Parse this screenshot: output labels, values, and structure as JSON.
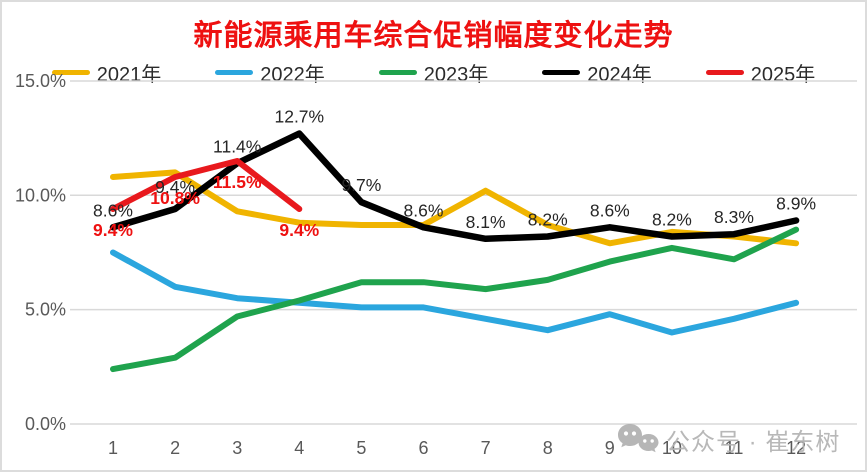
{
  "chart_data": {
    "type": "line",
    "title": "新能源乘用车综合促销幅度变化走势",
    "title_color": "#ee1111",
    "xlabel": "",
    "ylabel": "",
    "x_ticks": [
      "1",
      "2",
      "3",
      "4",
      "5",
      "6",
      "7",
      "8",
      "9",
      "10",
      "11",
      "12"
    ],
    "y_ticks": [
      "0.0%",
      "5.0%",
      "10.0%",
      "15.0%"
    ],
    "ylim": [
      0,
      15
    ],
    "grid": "horizontal-only",
    "legend_position": "top",
    "axis_label_color": "#595959",
    "gridline_color": "#d9d9d9",
    "series": [
      {
        "name": "2021年",
        "color": "#f0b400",
        "values": [
          10.8,
          11.0,
          9.3,
          8.8,
          8.7,
          8.7,
          10.2,
          8.7,
          7.9,
          8.4,
          8.2,
          7.9
        ]
      },
      {
        "name": "2022年",
        "color": "#2ba6de",
        "values": [
          7.5,
          6.0,
          5.5,
          5.3,
          5.1,
          5.1,
          4.6,
          4.1,
          4.8,
          4.0,
          4.6,
          5.3
        ]
      },
      {
        "name": "2023年",
        "color": "#1fa34d",
        "values": [
          2.4,
          2.9,
          4.7,
          5.4,
          6.2,
          6.2,
          5.9,
          6.3,
          7.1,
          7.7,
          7.2,
          8.5
        ]
      },
      {
        "name": "2024年",
        "color": "#000000",
        "values": [
          8.6,
          9.4,
          11.4,
          12.7,
          9.7,
          8.6,
          8.1,
          8.2,
          8.6,
          8.2,
          8.3,
          8.9
        ],
        "labels": [
          "8.6%",
          "9.4%",
          "11.4%",
          "12.7%",
          "9.7%",
          "8.6%",
          "8.1%",
          "8.2%",
          "8.6%",
          "8.2%",
          "8.3%",
          "8.9%"
        ],
        "label_color": "#262626",
        "label_position": "above",
        "label_bold": false
      },
      {
        "name": "2025年",
        "color": "#e8191d",
        "values": [
          9.4,
          10.8,
          11.5,
          9.4
        ],
        "labels": [
          "9.4%",
          "10.8%",
          "11.5%",
          "9.4%"
        ],
        "label_color": "#ee1111",
        "label_position": "below",
        "label_bold": true
      }
    ]
  },
  "watermark": {
    "icon": "wechat-icon",
    "text": "公众号 · 崔东树"
  }
}
